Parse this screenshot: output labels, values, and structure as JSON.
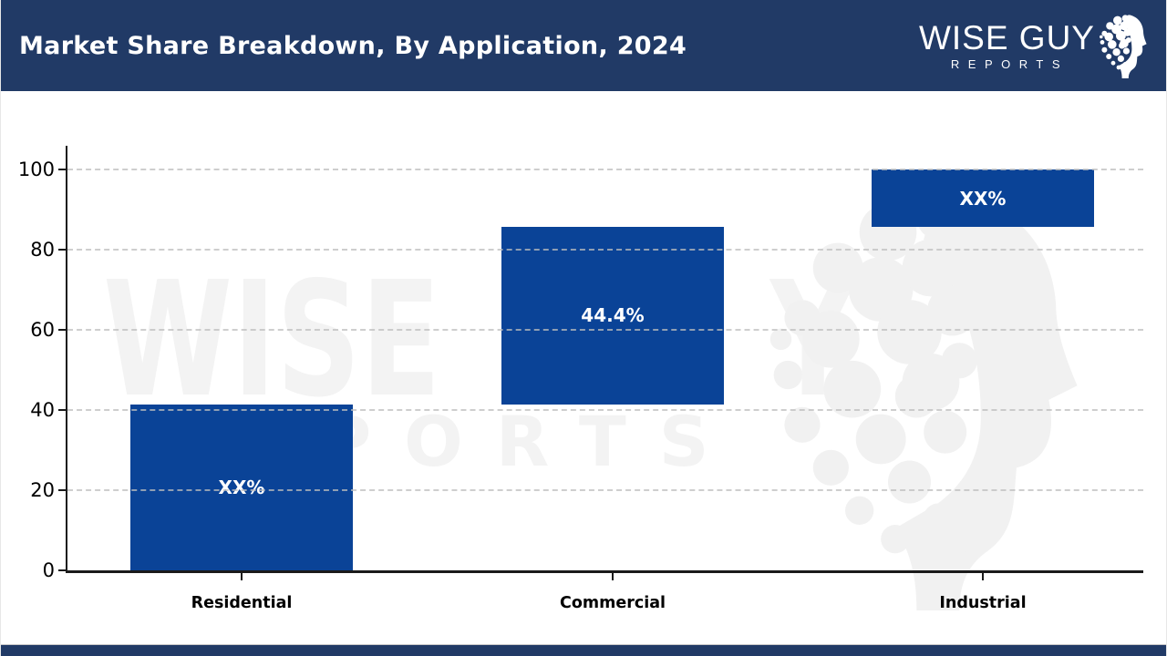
{
  "header": {
    "title": "Market Share Breakdown, By Application, 2024",
    "logo": {
      "line1": "WISE GUY",
      "line2": "REPORTS"
    }
  },
  "watermark": {
    "word1": "WISE",
    "word2": "GUY",
    "line2": "REPORTS"
  },
  "chart_data": {
    "type": "bar",
    "subtype": "floating-segment-bars",
    "title": "Market Share Breakdown, By Application, 2024",
    "categories": [
      "Residential",
      "Commercial",
      "Industrial"
    ],
    "series": [
      {
        "category": "Residential",
        "start": 0,
        "end": 41.4,
        "label": "XX%"
      },
      {
        "category": "Commercial",
        "start": 41.4,
        "end": 85.8,
        "label": "44.4%"
      },
      {
        "category": "Industrial",
        "start": 85.8,
        "end": 100,
        "label": "XX%"
      }
    ],
    "yticks": [
      0,
      20,
      40,
      60,
      80,
      100
    ],
    "ylim": [
      0,
      106
    ],
    "xlabel": "",
    "ylabel": "",
    "grid": "dashed horizontal, drawn above bars",
    "legend": "none"
  },
  "colors": {
    "header_bg": "#213a66",
    "footer_bg": "#213a66",
    "bar": "#0a4397",
    "bar_label": "#ffffff",
    "grid": "#bebebe",
    "axis": "#1a1a1a",
    "watermark": "#f3f3f3"
  }
}
